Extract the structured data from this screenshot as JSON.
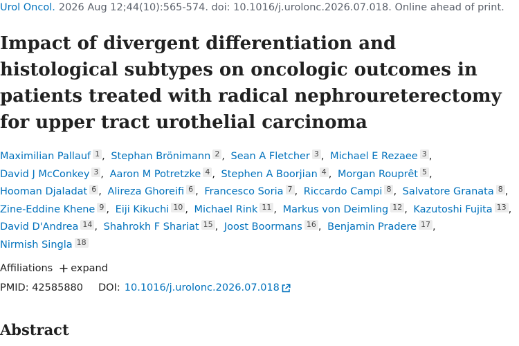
{
  "citation": {
    "journal": "Urol Oncol.",
    "details": "2026 Aug 12;44(10):565-574. doi: 10.1016/j.urolonc.2026.07.018. Online ahead of print."
  },
  "title": "Impact of divergent differentiation and histological subtypes on oncologic outcomes in patients treated with radical nephroureterectomy for upper tract urothelial carcinoma",
  "authors": [
    {
      "name": "Maximilian Pallauf",
      "affiliation": "1",
      "separator": ","
    },
    {
      "name": "Stephan Brönimann",
      "affiliation": "2",
      "separator": ","
    },
    {
      "name": "Sean A Fletcher",
      "affiliation": "3",
      "separator": ","
    },
    {
      "name": "Michael E Rezaee",
      "affiliation": "3",
      "separator": ","
    },
    {
      "name": "David J McConkey",
      "affiliation": "3",
      "separator": ","
    },
    {
      "name": "Aaron M Potretzke",
      "affiliation": "4",
      "separator": ","
    },
    {
      "name": "Stephen A Boorjian",
      "affiliation": "4",
      "separator": ","
    },
    {
      "name": "Morgan Rouprêt",
      "affiliation": "5",
      "separator": ","
    },
    {
      "name": "Hooman Djaladat",
      "affiliation": "6",
      "separator": ","
    },
    {
      "name": "Alireza Ghoreifi",
      "affiliation": "6",
      "separator": ","
    },
    {
      "name": "Francesco Soria",
      "affiliation": "7",
      "separator": ","
    },
    {
      "name": "Riccardo Campi",
      "affiliation": "8",
      "separator": ","
    },
    {
      "name": "Salvatore Granata",
      "affiliation": "8",
      "separator": ","
    },
    {
      "name": "Zine-Eddine Khene",
      "affiliation": "9",
      "separator": ","
    },
    {
      "name": "Eiji Kikuchi",
      "affiliation": "10",
      "separator": ","
    },
    {
      "name": "Michael Rink",
      "affiliation": "11",
      "separator": ","
    },
    {
      "name": "Markus von Deimling",
      "affiliation": "12",
      "separator": ","
    },
    {
      "name": "Kazutoshi Fujita",
      "affiliation": "13",
      "separator": ","
    },
    {
      "name": "David D'Andrea",
      "affiliation": "14",
      "separator": ","
    },
    {
      "name": "Shahrokh F Shariat",
      "affiliation": "15",
      "separator": ","
    },
    {
      "name": "Joost Boormans",
      "affiliation": "16",
      "separator": ","
    },
    {
      "name": "Benjamin Pradere",
      "affiliation": "17",
      "separator": ","
    },
    {
      "name": "Nirmish Singla",
      "affiliation": "18"
    }
  ],
  "affiliations": {
    "label": "Affiliations",
    "toggle": "expand"
  },
  "identifiers": {
    "pmid_label": "PMID:",
    "pmid": "42585880",
    "doi_label": "DOI:",
    "doi": "10.1016/j.urolonc.2026.07.018"
  },
  "abstract_heading": "Abstract"
}
